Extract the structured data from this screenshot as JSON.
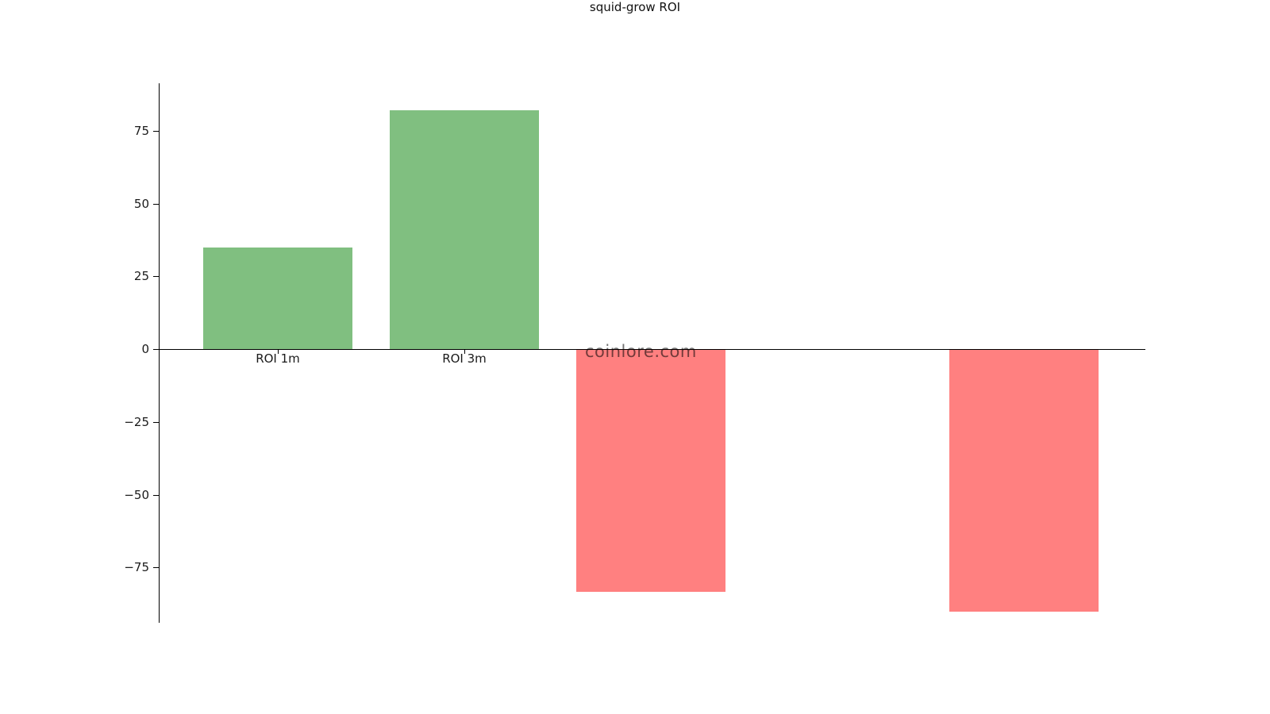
{
  "watermark": {
    "text": "coinlore.com",
    "color": "rgba(0,0,0,0.55)"
  },
  "chart_data": {
    "type": "bar",
    "title": "squid-grow ROI",
    "xlabel": "",
    "ylabel": "",
    "categories": [
      "ROI 1m",
      "ROI 3m",
      "",
      "",
      ""
    ],
    "values": [
      35,
      82,
      -83,
      null,
      -90
    ],
    "y_ticks": [
      75,
      50,
      25,
      0,
      -25,
      -50,
      -75
    ],
    "ylim": [
      -94,
      91
    ],
    "grid": false,
    "legend": false,
    "background": "#ffffff",
    "colors": {
      "positive_bar": "#80bf80",
      "negative_bar": "#ff8080",
      "axis": "#000000",
      "tick_label": "#1a1a1a",
      "title": "#111111"
    }
  }
}
